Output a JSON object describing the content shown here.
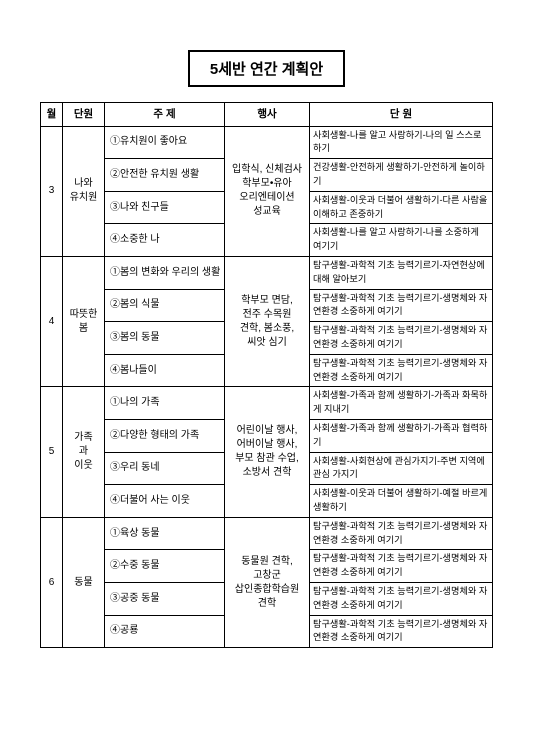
{
  "title": "5세반 연간 계획안",
  "headers": {
    "month": "월",
    "unit": "단원",
    "topic": "주 제",
    "event": "행사",
    "goal": "단 원"
  },
  "months": [
    {
      "month": "3",
      "unit": "나와\n유치원",
      "event": "입학식, 신체검사\n학부모•유아\n오리엔테이션\n성교육",
      "rows": [
        {
          "topic": "①유치원이 좋아요",
          "goal": "사회생활-나를 알고 사랑하기-나의 일 스스로 하기"
        },
        {
          "topic": "②안전한 유치원 생활",
          "goal": "건강생활-안전하게 생활하기-안전하게 놀이하기"
        },
        {
          "topic": "③나와 친구들",
          "goal": "사회생활-이웃과 더불어 생활하기-다른 사람을 이해하고 존중하기"
        },
        {
          "topic": "④소중한 나",
          "goal": "사회생활-나를 알고 사랑하기-나를 소중하게 여기기"
        }
      ]
    },
    {
      "month": "4",
      "unit": "따뜻한\n봄",
      "event": "학부모 면담,\n전주 수목원\n견학, 봄소풍,\n씨앗 심기",
      "rows": [
        {
          "topic": "①봄의 변화와 우리의 생활",
          "goal": "탐구생활-과학적 기초 능력기르기-자연현상에 대해 알아보기"
        },
        {
          "topic": "②봄의 식물",
          "goal": "탐구생활-과학적 기초 능력기르기-생명체와 자연환경 소중하게 여기기"
        },
        {
          "topic": "③봄의 동물",
          "goal": "탐구생활-과학적 기초 능력기르기-생명체와 자연환경 소중하게 여기기"
        },
        {
          "topic": "④봄나들이",
          "goal": "탐구생활-과학적 기초 능력기르기-생명체와 자연환경 소중하게 여기기"
        }
      ]
    },
    {
      "month": "5",
      "unit": "가족\n과\n이웃",
      "event": "어린이날 행사,\n어버이날 행사,\n부모 참관 수업,\n소방서 견학",
      "rows": [
        {
          "topic": "①나의 가족",
          "goal": "사회생활-가족과 함께 생활하기-가족과 화목하게 지내기"
        },
        {
          "topic": "②다양한 형태의 가족",
          "goal": "사회생활-가족과 함께 생활하기-가족과 협력하기"
        },
        {
          "topic": "③우리 동네",
          "goal": "사회생활-사회현상에 관심가지기-주변 지역에 관심 가지기"
        },
        {
          "topic": "④더불어 사는 이웃",
          "goal": "사회생활-이웃과 더불어 생활하기-예절 바르게 생활하기"
        }
      ]
    },
    {
      "month": "6",
      "unit": "동물",
      "event": "동물원 견학,\n고창군\n삽인종합학습원\n견학",
      "rows": [
        {
          "topic": "①육상 동물",
          "goal": "탐구생활-과학적 기초 능력기르기-생명체와 자연환경 소중하게 여기기"
        },
        {
          "topic": "②수중 동물",
          "goal": "탐구생활-과학적 기초 능력기르기-생명체와 자연환경 소중하게 여기기"
        },
        {
          "topic": "③공중 동물",
          "goal": "탐구생활-과학적 기초 능력기르기-생명체와 자연환경 소중하게 여기기"
        },
        {
          "topic": "④공룡",
          "goal": "탐구생활-과학적 기초 능력기르기-생명체와 자연환경 소중하게 여기기"
        }
      ]
    }
  ]
}
